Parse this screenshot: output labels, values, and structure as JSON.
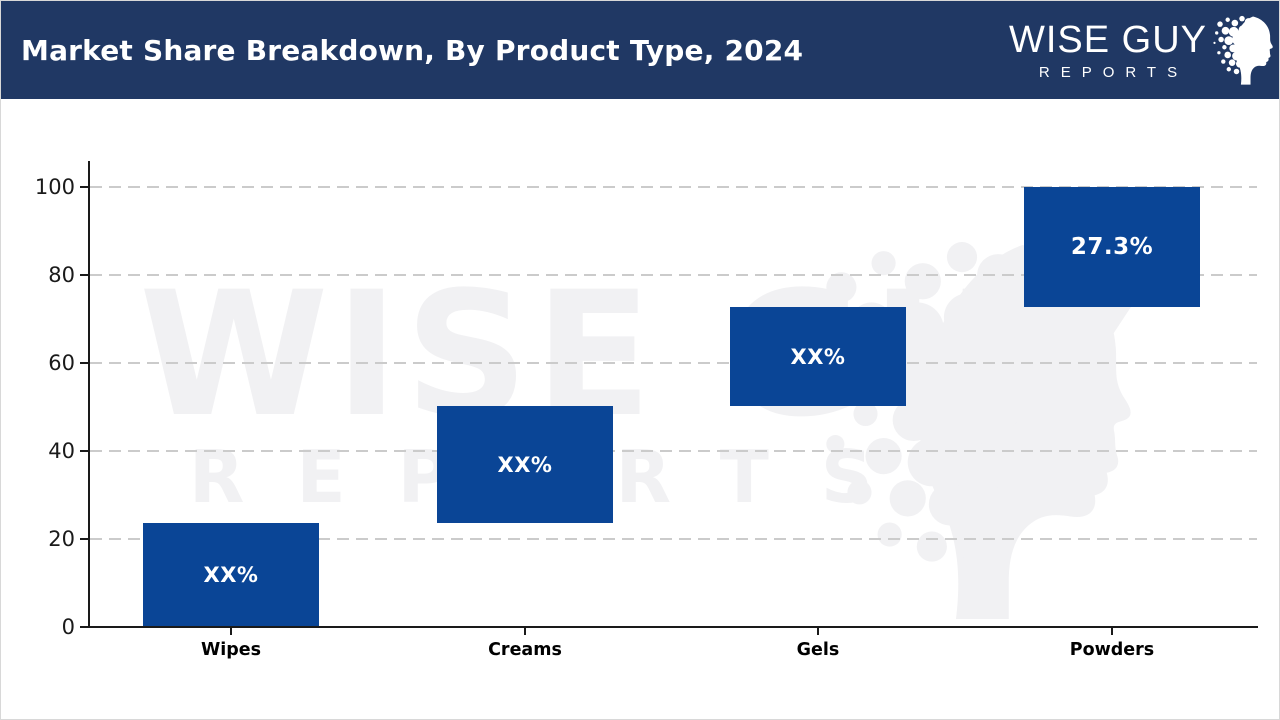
{
  "header": {
    "title": "Market Share Breakdown, By Product Type, 2024",
    "bg_color": "#203864",
    "logo": {
      "wordmark": "WISE GUY",
      "subtext": "REPORTS"
    }
  },
  "watermark": {
    "wordmark": "WISE GUY",
    "subtext": "REPORTS"
  },
  "chart_data": {
    "type": "bar",
    "variant": "waterfall",
    "title": "Market Share Breakdown, By Product Type, 2024",
    "categories": [
      "Wipes",
      "Creams",
      "Gels",
      "Powders"
    ],
    "series": [
      {
        "name": "Market share (%)",
        "segments": [
          {
            "category": "Wipes",
            "start": 0,
            "end": 23.6,
            "label": "XX%"
          },
          {
            "category": "Creams",
            "start": 23.6,
            "end": 50.2,
            "label": "XX%"
          },
          {
            "category": "Gels",
            "start": 50.2,
            "end": 72.7,
            "label": "XX%"
          },
          {
            "category": "Powders",
            "start": 72.7,
            "end": 100,
            "label": "27.3%"
          }
        ]
      }
    ],
    "xlabel": "",
    "ylabel": "",
    "yticks": [
      0,
      20,
      40,
      60,
      80,
      100
    ],
    "ylim": [
      0,
      106
    ],
    "grid": "horizontal-dashed",
    "legend": "none",
    "bar_color": "#0a4596",
    "bar_label_color": "#ffffff",
    "axis_color": "#1a1a1a",
    "gridline_color": "#cbcbcb"
  }
}
